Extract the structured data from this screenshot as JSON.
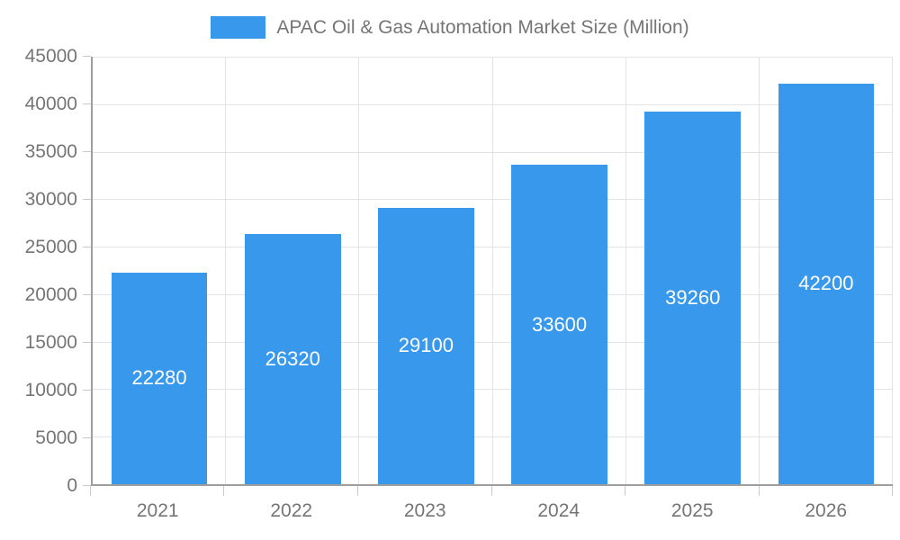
{
  "chart_data": {
    "type": "bar",
    "title": "APAC Oil & Gas Automation Market Size (Million)",
    "legend_position": "top",
    "categories": [
      "2021",
      "2022",
      "2023",
      "2024",
      "2025",
      "2026"
    ],
    "values": [
      22280,
      26320,
      29100,
      33600,
      39260,
      42200
    ],
    "bar_value_labels": [
      "22280",
      "26320",
      "29100",
      "33600",
      "39260",
      "42200"
    ],
    "xlabel": "",
    "ylabel": "",
    "ylim": [
      0,
      45000
    ],
    "y_tick_step": 5000,
    "y_ticks": [
      0,
      5000,
      10000,
      15000,
      20000,
      25000,
      30000,
      35000,
      40000,
      45000
    ],
    "grid": true,
    "colors": {
      "bar": "#3898ec",
      "bar_label": "#ffffff",
      "axis_text": "#757575",
      "axis_line": "#9e9e9e",
      "gridline": "#e3e3e3",
      "tick": "#c9c9c9",
      "background": "#ffffff"
    }
  }
}
